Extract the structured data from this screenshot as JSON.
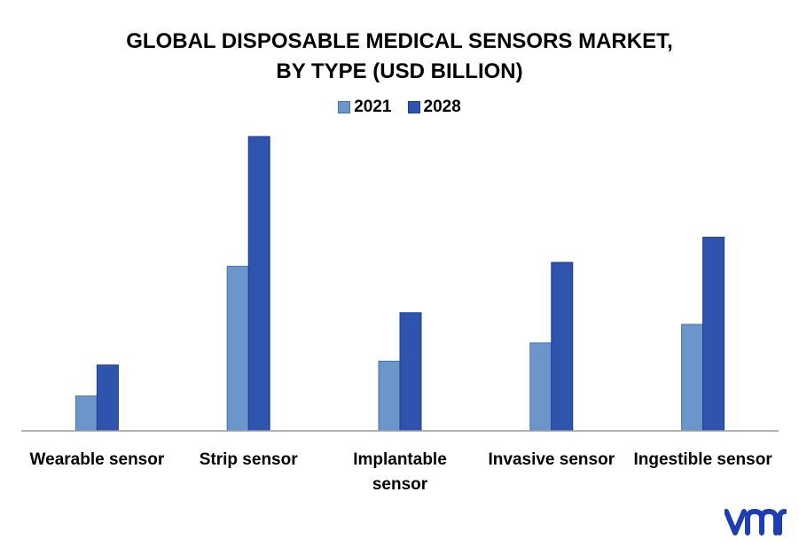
{
  "chart_data": {
    "type": "bar",
    "title": "GLOBAL DISPOSABLE MEDICAL SENSORS MARKET,",
    "subtitle": "BY TYPE (USD BILLION)",
    "categories": [
      [
        "Wearable sensor"
      ],
      [
        "Strip sensor"
      ],
      [
        "Implantable",
        "sensor"
      ],
      [
        "Invasive sensor"
      ],
      [
        "Ingestible sensor"
      ]
    ],
    "series": [
      {
        "name": "2021",
        "color": "#6a96cc",
        "values": [
          0.9,
          4.25,
          1.8,
          2.27,
          2.75
        ]
      },
      {
        "name": "2028",
        "color": "#2e54ad",
        "values": [
          1.7,
          7.6,
          3.05,
          4.35,
          5.0
        ]
      }
    ],
    "ylim": [
      0,
      8
    ],
    "grid": false,
    "legend_position": "top-center"
  },
  "logo": {
    "color": "#1f3fb0"
  }
}
